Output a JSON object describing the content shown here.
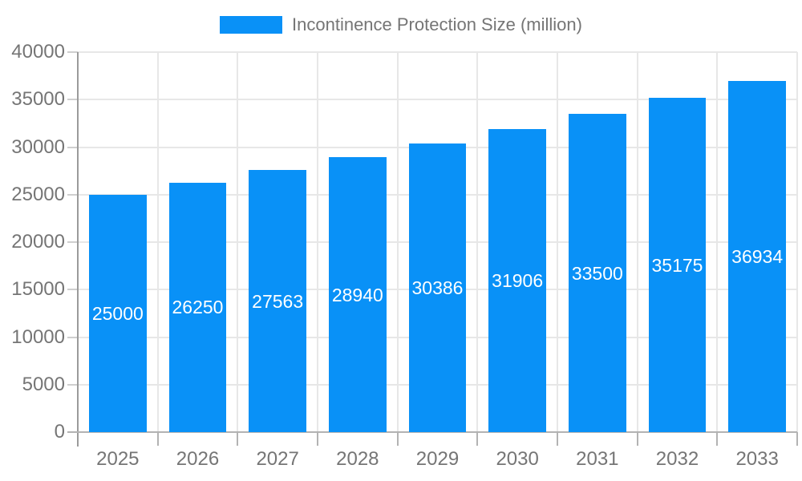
{
  "legend": {
    "label": "Incontinence Protection Size (million)"
  },
  "colors": {
    "bar": "#0991f7",
    "bar_label_text": "#ffffff",
    "grid_line": "#e7e7e7",
    "y_axis_line": "#9b9b9b",
    "baseline": "#b3b3b3",
    "y_tick": "#cfcfcf",
    "axis_text": "#757575",
    "background": "#ffffff"
  },
  "chart_data": {
    "type": "bar",
    "title": "Incontinence Protection Size (million)",
    "categories": [
      "2025",
      "2026",
      "2027",
      "2028",
      "2029",
      "2030",
      "2031",
      "2032",
      "2033"
    ],
    "values": [
      25000,
      26250,
      27563,
      28940,
      30386,
      31906,
      33500,
      35175,
      36934
    ],
    "bar_value_labels": [
      "25000",
      "26250",
      "27563",
      "28940",
      "30386",
      "31906",
      "33500",
      "35175",
      "36934"
    ],
    "xlabel": "",
    "ylabel": "",
    "ylim": [
      0,
      40000
    ],
    "ytick_step": 5000,
    "ytick_labels": [
      "0",
      "5000",
      "10000",
      "15000",
      "20000",
      "25000",
      "30000",
      "35000",
      "40000"
    ],
    "grid": "horizontal gridlines at each 5000 step and vertical gridlines at category boundaries",
    "legend_position": "top-center",
    "value_label_position": "inside bar, centered"
  }
}
